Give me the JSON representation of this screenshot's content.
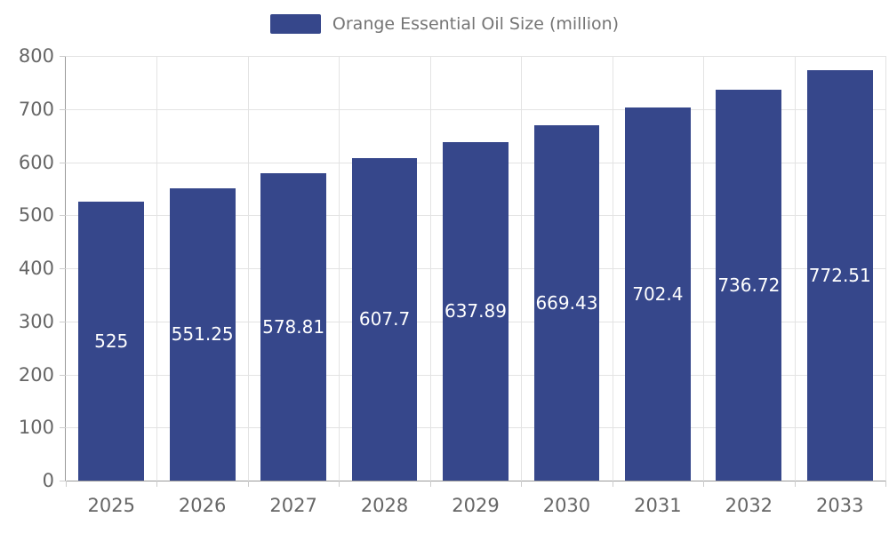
{
  "chart_data": {
    "type": "bar",
    "legend": "Orange Essential Oil Size (million)",
    "legend_position": "top-center",
    "categories": [
      "2025",
      "2026",
      "2027",
      "2028",
      "2029",
      "2030",
      "2031",
      "2032",
      "2033"
    ],
    "values": [
      525,
      551.25,
      578.81,
      607.7,
      637.89,
      669.43,
      702.4,
      736.72,
      772.51
    ],
    "value_labels": [
      "525",
      "551.25",
      "578.81",
      "607.7",
      "637.89",
      "669.43",
      "702.4",
      "736.72",
      "772.51"
    ],
    "xlabel": "",
    "ylabel": "",
    "ylim": [
      0,
      800
    ],
    "y_ticks": [
      0,
      100,
      200,
      300,
      400,
      500,
      600,
      700,
      800
    ],
    "grid": "horizontal and vertical gridlines on",
    "bar_width_fraction": 0.72,
    "colors": {
      "bar": "#36478B",
      "grid": "#e3e3e3",
      "axis": "#999999",
      "tick_text": "#666666",
      "legend_text": "#757575",
      "value_label_text": "#ffffff",
      "background": "#ffffff"
    }
  }
}
